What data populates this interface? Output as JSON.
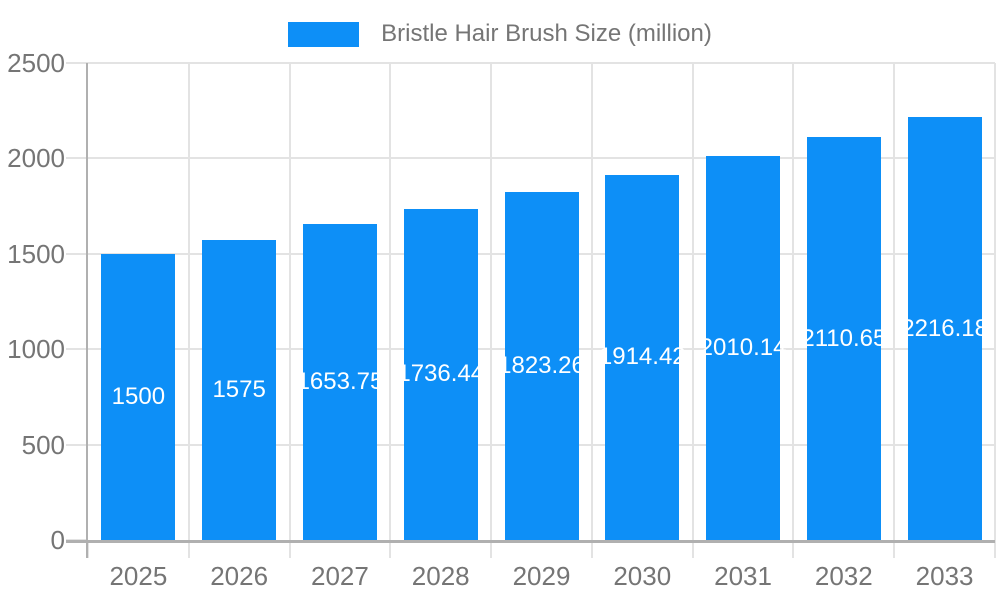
{
  "chart_data": {
    "type": "bar",
    "title": "Bristle Hair Brush Size (million)",
    "legend": [
      "Bristle Hair Brush Size (million)"
    ],
    "legend_position": "top-center",
    "categories": [
      "2025",
      "2026",
      "2027",
      "2028",
      "2029",
      "2030",
      "2031",
      "2032",
      "2033"
    ],
    "series": [
      {
        "name": "Bristle Hair Brush Size (million)",
        "values": [
          1500,
          1575,
          1653.75,
          1736.44,
          1823.26,
          1914.42,
          2010.14,
          2110.65,
          2216.18
        ],
        "data_labels": [
          "1500",
          "1575",
          "1653.75",
          "1736.44",
          "1823.26",
          "1914.42",
          "2010.14",
          "2110.65",
          "2216.18"
        ]
      }
    ],
    "xlabel": "",
    "ylabel": "",
    "ylim": [
      0,
      2500
    ],
    "yticks": [
      0,
      500,
      1000,
      1500,
      2000,
      2500
    ],
    "grid": true,
    "colors": {
      "bar": "#0d8ff7",
      "bar_label_text": "#ffffff",
      "axis_text": "#757575",
      "gridline": "#e3e3e3",
      "axis_line": "#b0b0b0",
      "background": "#ffffff"
    }
  }
}
